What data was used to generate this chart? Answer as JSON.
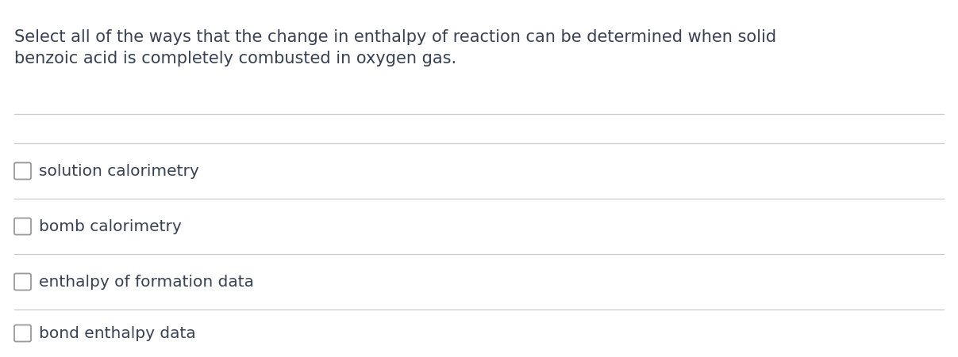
{
  "question_line1": "Select all of the ways that the change in enthalpy of reaction can be determined when solid",
  "question_line2": "benzoic acid is completely combusted in oxygen gas.",
  "options": [
    "solution calorimetry",
    "bomb calorimetry",
    "enthalpy of formation data",
    "bond enthalpy data"
  ],
  "background_color": "#ffffff",
  "text_color": "#374151",
  "line_color": "#cccccc",
  "checkbox_color": "#999999",
  "question_fontsize": 15.0,
  "option_fontsize": 14.5,
  "fig_width": 12.07,
  "fig_height": 4.52
}
